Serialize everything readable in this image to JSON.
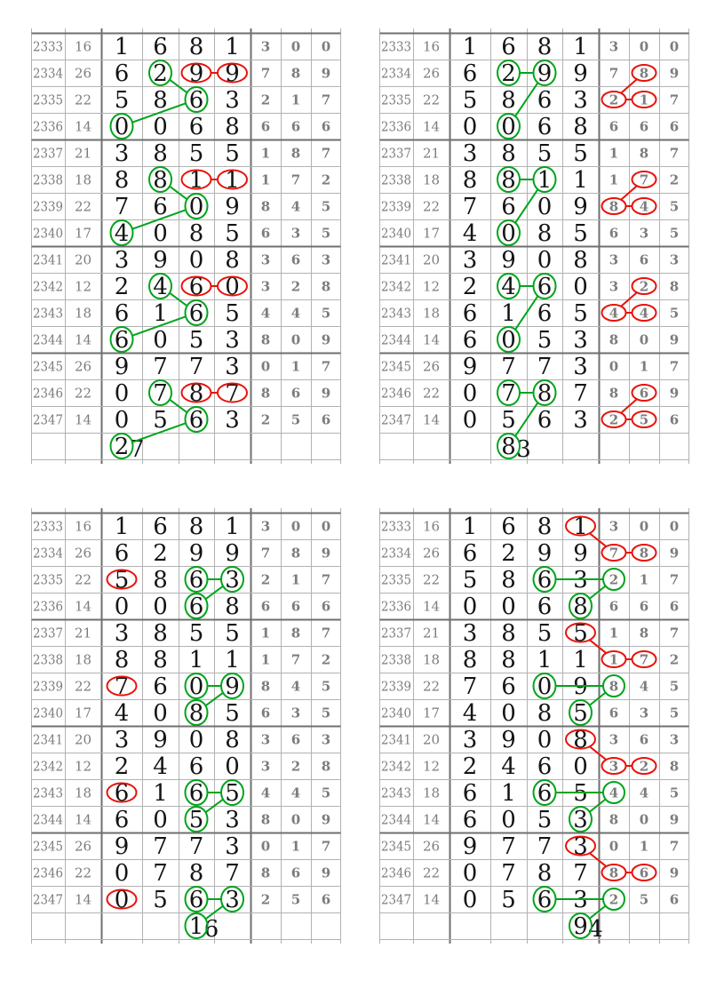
{
  "colors": {
    "green": "#00a41b",
    "red": "#e8120a",
    "digit": "#141414",
    "muted": "#7c7c7c",
    "grid_thin": "#b2b2b2",
    "grid_thick": "#6f6f6f"
  },
  "chart_data": {
    "type": "table",
    "columns": [
      "period",
      "sum",
      "digit1",
      "digit2",
      "digit3",
      "digit4",
      "tail1",
      "tail2",
      "tail3"
    ],
    "rows": [
      {
        "period": "2333",
        "sum": "16",
        "big": [
          "1",
          "6",
          "8",
          "1"
        ],
        "small": [
          "3",
          "0",
          "0"
        ]
      },
      {
        "period": "2334",
        "sum": "26",
        "big": [
          "6",
          "2",
          "9",
          "9"
        ],
        "small": [
          "7",
          "8",
          "9"
        ]
      },
      {
        "period": "2335",
        "sum": "22",
        "big": [
          "5",
          "8",
          "6",
          "3"
        ],
        "small": [
          "2",
          "1",
          "7"
        ]
      },
      {
        "period": "2336",
        "sum": "14",
        "big": [
          "0",
          "0",
          "6",
          "8"
        ],
        "small": [
          "6",
          "6",
          "6"
        ]
      },
      {
        "period": "2337",
        "sum": "21",
        "big": [
          "3",
          "8",
          "5",
          "5"
        ],
        "small": [
          "1",
          "8",
          "7"
        ]
      },
      {
        "period": "2338",
        "sum": "18",
        "big": [
          "8",
          "8",
          "1",
          "1"
        ],
        "small": [
          "1",
          "7",
          "2"
        ]
      },
      {
        "period": "2339",
        "sum": "22",
        "big": [
          "7",
          "6",
          "0",
          "9"
        ],
        "small": [
          "8",
          "4",
          "5"
        ]
      },
      {
        "period": "2340",
        "sum": "17",
        "big": [
          "4",
          "0",
          "8",
          "5"
        ],
        "small": [
          "6",
          "3",
          "5"
        ]
      },
      {
        "period": "2341",
        "sum": "20",
        "big": [
          "3",
          "9",
          "0",
          "8"
        ],
        "small": [
          "3",
          "6",
          "3"
        ]
      },
      {
        "period": "2342",
        "sum": "12",
        "big": [
          "2",
          "4",
          "6",
          "0"
        ],
        "small": [
          "3",
          "2",
          "8"
        ]
      },
      {
        "period": "2343",
        "sum": "18",
        "big": [
          "6",
          "1",
          "6",
          "5"
        ],
        "small": [
          "4",
          "4",
          "5"
        ]
      },
      {
        "period": "2344",
        "sum": "14",
        "big": [
          "6",
          "0",
          "5",
          "3"
        ],
        "small": [
          "8",
          "0",
          "9"
        ]
      },
      {
        "period": "2345",
        "sum": "26",
        "big": [
          "9",
          "7",
          "7",
          "3"
        ],
        "small": [
          "0",
          "1",
          "7"
        ]
      },
      {
        "period": "2346",
        "sum": "22",
        "big": [
          "0",
          "7",
          "8",
          "7"
        ],
        "small": [
          "8",
          "6",
          "9"
        ]
      },
      {
        "period": "2347",
        "sum": "14",
        "big": [
          "0",
          "5",
          "6",
          "3"
        ],
        "small": [
          "2",
          "5",
          "6"
        ]
      }
    ],
    "footer_values": {
      "top_left": "27",
      "top_right": "83",
      "bottom_left": "16",
      "bottom_right": "94"
    }
  },
  "panels": [
    {
      "id": "top-left",
      "final": {
        "col": "b1",
        "digits": "27"
      },
      "green_circles": [
        [
          1,
          "b2"
        ],
        [
          2,
          "b3"
        ],
        [
          3,
          "b1"
        ],
        [
          5,
          "b2"
        ],
        [
          6,
          "b3"
        ],
        [
          7,
          "b1"
        ],
        [
          9,
          "b2"
        ],
        [
          10,
          "b3"
        ],
        [
          11,
          "b1"
        ],
        [
          13,
          "b2"
        ],
        [
          14,
          "b3"
        ],
        [
          15,
          "b1"
        ]
      ],
      "red_circles": [
        [
          1,
          "b3"
        ],
        [
          1,
          "b4"
        ],
        [
          5,
          "b3"
        ],
        [
          5,
          "b4"
        ],
        [
          9,
          "b3"
        ],
        [
          9,
          "b4"
        ],
        [
          13,
          "b3"
        ],
        [
          13,
          "b4"
        ]
      ],
      "green_lines": [
        [
          [
            1,
            "b2"
          ],
          [
            2,
            "b3"
          ]
        ],
        [
          [
            2,
            "b3"
          ],
          [
            3,
            "b1"
          ]
        ],
        [
          [
            5,
            "b2"
          ],
          [
            6,
            "b3"
          ]
        ],
        [
          [
            6,
            "b3"
          ],
          [
            7,
            "b1"
          ]
        ],
        [
          [
            9,
            "b2"
          ],
          [
            10,
            "b3"
          ]
        ],
        [
          [
            10,
            "b3"
          ],
          [
            11,
            "b1"
          ]
        ],
        [
          [
            13,
            "b2"
          ],
          [
            14,
            "b3"
          ]
        ],
        [
          [
            14,
            "b3"
          ],
          [
            15,
            "b1"
          ]
        ]
      ],
      "red_lines": [
        [
          [
            1,
            "b3"
          ],
          [
            1,
            "b4"
          ]
        ],
        [
          [
            5,
            "b3"
          ],
          [
            5,
            "b4"
          ]
        ],
        [
          [
            9,
            "b3"
          ],
          [
            9,
            "b4"
          ]
        ],
        [
          [
            13,
            "b3"
          ],
          [
            13,
            "b4"
          ]
        ]
      ]
    },
    {
      "id": "top-right",
      "final": {
        "col": "b2",
        "digits": "83"
      },
      "green_circles": [
        [
          1,
          "b2"
        ],
        [
          1,
          "b3"
        ],
        [
          3,
          "b2"
        ],
        [
          5,
          "b2"
        ],
        [
          5,
          "b3"
        ],
        [
          7,
          "b2"
        ],
        [
          9,
          "b2"
        ],
        [
          9,
          "b3"
        ],
        [
          11,
          "b2"
        ],
        [
          13,
          "b2"
        ],
        [
          13,
          "b3"
        ],
        [
          15,
          "b2"
        ]
      ],
      "red_circles": [
        [
          1,
          "s2"
        ],
        [
          2,
          "s1"
        ],
        [
          2,
          "s2"
        ],
        [
          5,
          "s2"
        ],
        [
          6,
          "s1"
        ],
        [
          6,
          "s2"
        ],
        [
          9,
          "s2"
        ],
        [
          10,
          "s1"
        ],
        [
          10,
          "s2"
        ],
        [
          13,
          "s2"
        ],
        [
          14,
          "s1"
        ],
        [
          14,
          "s2"
        ]
      ],
      "green_lines": [
        [
          [
            1,
            "b2"
          ],
          [
            1,
            "b3"
          ]
        ],
        [
          [
            1,
            "b3"
          ],
          [
            3,
            "b2"
          ]
        ],
        [
          [
            5,
            "b2"
          ],
          [
            5,
            "b3"
          ]
        ],
        [
          [
            5,
            "b3"
          ],
          [
            7,
            "b2"
          ]
        ],
        [
          [
            9,
            "b2"
          ],
          [
            9,
            "b3"
          ]
        ],
        [
          [
            9,
            "b3"
          ],
          [
            11,
            "b2"
          ]
        ],
        [
          [
            13,
            "b2"
          ],
          [
            13,
            "b3"
          ]
        ],
        [
          [
            13,
            "b3"
          ],
          [
            15,
            "b2"
          ]
        ]
      ],
      "red_lines": [
        [
          [
            1,
            "s2"
          ],
          [
            2,
            "s1"
          ]
        ],
        [
          [
            2,
            "s1"
          ],
          [
            2,
            "s2"
          ]
        ],
        [
          [
            5,
            "s2"
          ],
          [
            6,
            "s1"
          ]
        ],
        [
          [
            6,
            "s1"
          ],
          [
            6,
            "s2"
          ]
        ],
        [
          [
            9,
            "s2"
          ],
          [
            10,
            "s1"
          ]
        ],
        [
          [
            10,
            "s1"
          ],
          [
            10,
            "s2"
          ]
        ],
        [
          [
            13,
            "s2"
          ],
          [
            14,
            "s1"
          ]
        ],
        [
          [
            14,
            "s1"
          ],
          [
            14,
            "s2"
          ]
        ]
      ]
    },
    {
      "id": "bottom-left",
      "final": {
        "col": "b3",
        "digits": "16"
      },
      "green_circles": [
        [
          2,
          "b3"
        ],
        [
          2,
          "b4"
        ],
        [
          3,
          "b3"
        ],
        [
          6,
          "b3"
        ],
        [
          6,
          "b4"
        ],
        [
          7,
          "b3"
        ],
        [
          10,
          "b3"
        ],
        [
          10,
          "b4"
        ],
        [
          11,
          "b3"
        ],
        [
          14,
          "b3"
        ],
        [
          14,
          "b4"
        ],
        [
          15,
          "b3"
        ]
      ],
      "red_circles": [
        [
          2,
          "b1"
        ],
        [
          6,
          "b1"
        ],
        [
          10,
          "b1"
        ],
        [
          14,
          "b1"
        ]
      ],
      "green_lines": [
        [
          [
            2,
            "b3"
          ],
          [
            2,
            "b4"
          ]
        ],
        [
          [
            2,
            "b4"
          ],
          [
            3,
            "b3"
          ]
        ],
        [
          [
            6,
            "b3"
          ],
          [
            6,
            "b4"
          ]
        ],
        [
          [
            6,
            "b4"
          ],
          [
            7,
            "b3"
          ]
        ],
        [
          [
            10,
            "b3"
          ],
          [
            10,
            "b4"
          ]
        ],
        [
          [
            10,
            "b4"
          ],
          [
            11,
            "b3"
          ]
        ],
        [
          [
            14,
            "b3"
          ],
          [
            14,
            "b4"
          ]
        ],
        [
          [
            14,
            "b4"
          ],
          [
            15,
            "b3"
          ]
        ]
      ],
      "red_lines": []
    },
    {
      "id": "bottom-right",
      "final": {
        "col": "b4",
        "digits": "94"
      },
      "green_circles": [
        [
          2,
          "b3"
        ],
        [
          2,
          "s1"
        ],
        [
          3,
          "b4"
        ],
        [
          6,
          "b3"
        ],
        [
          6,
          "s1"
        ],
        [
          7,
          "b4"
        ],
        [
          10,
          "b3"
        ],
        [
          10,
          "s1"
        ],
        [
          11,
          "b4"
        ],
        [
          14,
          "b3"
        ],
        [
          14,
          "s1"
        ],
        [
          15,
          "b4"
        ]
      ],
      "red_circles": [
        [
          0,
          "b4"
        ],
        [
          1,
          "s1"
        ],
        [
          1,
          "s2"
        ],
        [
          4,
          "b4"
        ],
        [
          5,
          "s1"
        ],
        [
          5,
          "s2"
        ],
        [
          8,
          "b4"
        ],
        [
          9,
          "s1"
        ],
        [
          9,
          "s2"
        ],
        [
          12,
          "b4"
        ],
        [
          13,
          "s1"
        ],
        [
          13,
          "s2"
        ]
      ],
      "green_lines": [
        [
          [
            2,
            "b3"
          ],
          [
            2,
            "s1"
          ]
        ],
        [
          [
            2,
            "s1"
          ],
          [
            3,
            "b4"
          ]
        ],
        [
          [
            6,
            "b3"
          ],
          [
            6,
            "s1"
          ]
        ],
        [
          [
            6,
            "s1"
          ],
          [
            7,
            "b4"
          ]
        ],
        [
          [
            10,
            "b3"
          ],
          [
            10,
            "s1"
          ]
        ],
        [
          [
            10,
            "s1"
          ],
          [
            11,
            "b4"
          ]
        ],
        [
          [
            14,
            "b3"
          ],
          [
            14,
            "s1"
          ]
        ],
        [
          [
            14,
            "s1"
          ],
          [
            15,
            "b4"
          ]
        ]
      ],
      "red_lines": [
        [
          [
            0,
            "b4"
          ],
          [
            1,
            "s1"
          ]
        ],
        [
          [
            1,
            "s1"
          ],
          [
            1,
            "s2"
          ]
        ],
        [
          [
            4,
            "b4"
          ],
          [
            5,
            "s1"
          ]
        ],
        [
          [
            5,
            "s1"
          ],
          [
            5,
            "s2"
          ]
        ],
        [
          [
            8,
            "b4"
          ],
          [
            9,
            "s1"
          ]
        ],
        [
          [
            9,
            "s1"
          ],
          [
            9,
            "s2"
          ]
        ],
        [
          [
            12,
            "b4"
          ],
          [
            13,
            "s1"
          ]
        ],
        [
          [
            13,
            "s1"
          ],
          [
            13,
            "s2"
          ]
        ]
      ]
    }
  ]
}
